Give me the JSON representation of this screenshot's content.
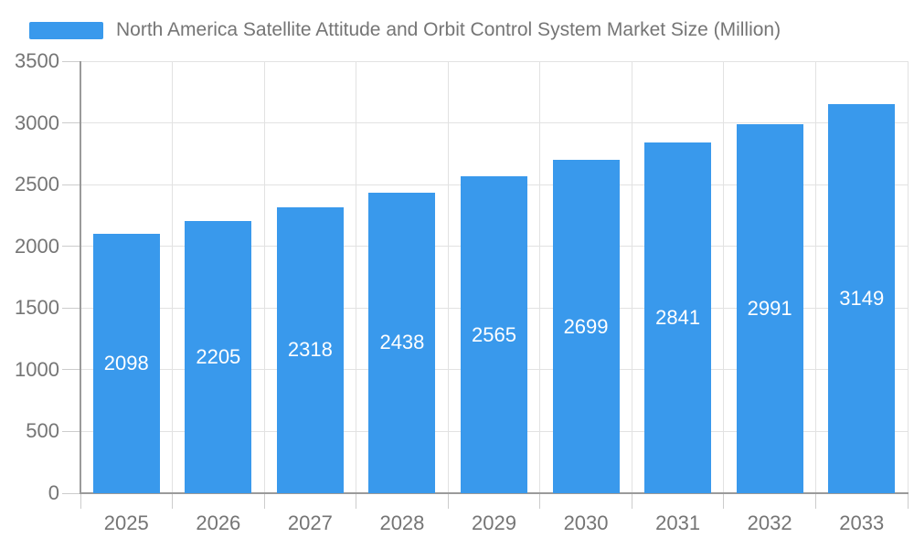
{
  "chart_data": {
    "type": "bar",
    "title": "North America Satellite Attitude and Orbit Control System Market Size (Million)",
    "categories": [
      "2025",
      "2026",
      "2027",
      "2028",
      "2029",
      "2030",
      "2031",
      "2032",
      "2033"
    ],
    "values": [
      2098,
      2205,
      2318,
      2438,
      2565,
      2699,
      2841,
      2991,
      3149
    ],
    "xlabel": "",
    "ylabel": "",
    "ylim": [
      0,
      3500
    ],
    "yticks": [
      0,
      500,
      1000,
      1500,
      2000,
      2500,
      3000,
      3500
    ],
    "grid": true,
    "legend_position": "top-left",
    "bar_color": "#3999EC",
    "bar_value_label_color": "#ffffff",
    "axis_color": "#9a9a9a",
    "grid_color": "#e2e2e2",
    "tick_color": "#cccccc",
    "text_color": "#757575"
  }
}
